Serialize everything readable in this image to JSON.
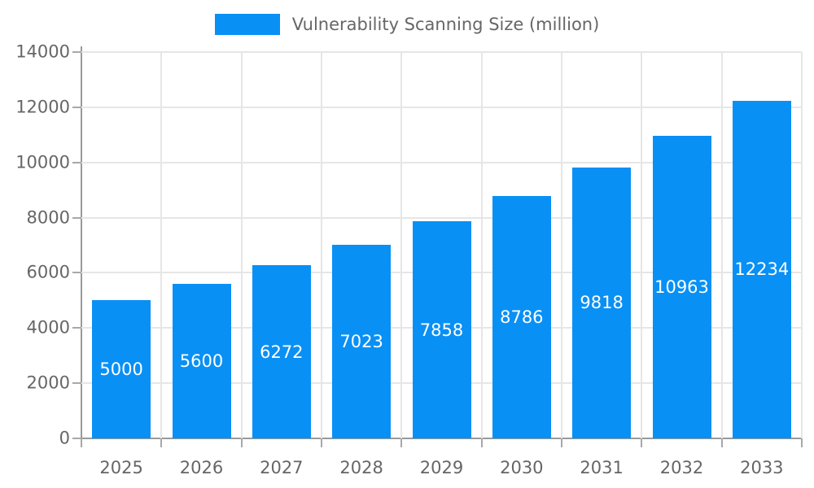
{
  "chart_data": {
    "type": "bar",
    "title": "Vulnerability Scanning Size (million)",
    "legend": {
      "label": "Vulnerability Scanning Size (million)",
      "position": "top-center"
    },
    "categories": [
      "2025",
      "2026",
      "2027",
      "2028",
      "2029",
      "2030",
      "2031",
      "2032",
      "2033"
    ],
    "values": [
      5000,
      5600,
      6272,
      7023,
      7858,
      8786,
      9818,
      10963,
      12234
    ],
    "xlabel": "",
    "ylabel": "",
    "ylim": [
      0,
      14000
    ],
    "y_ticks": [
      0,
      2000,
      4000,
      6000,
      8000,
      10000,
      12000,
      14000
    ],
    "grid": true,
    "value_labels": "inside-center-white",
    "colors": {
      "bar": "#0990f5",
      "value_label": "#ffffff",
      "axis_label": "#666666",
      "gridline": "#e6e6e6",
      "axis_line": "#999999",
      "tick_mark": "#a8a8a8",
      "background": "#ffffff"
    }
  }
}
